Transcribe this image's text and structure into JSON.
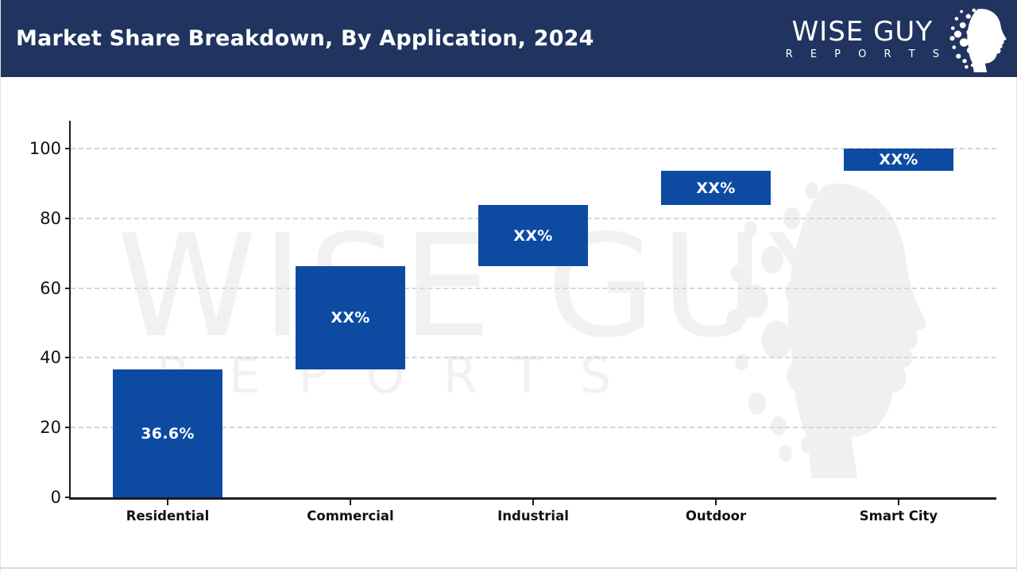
{
  "header": {
    "title": "Market Share Breakdown, By Application, 2024",
    "logo_line1": "WISE GUY",
    "logo_line2": "REPORTS"
  },
  "watermark": {
    "line1": "WISE GUY",
    "line2": "REPORTS"
  },
  "chart_data": {
    "type": "bar",
    "subtype": "waterfall",
    "title": "Market Share Breakdown, By Application, 2024",
    "categories": [
      "Residential",
      "Commercial",
      "Industrial",
      "Outdoor",
      "Smart City"
    ],
    "bars": [
      {
        "category": "Residential",
        "start": 0,
        "end": 36.6,
        "label": "36.6%"
      },
      {
        "category": "Commercial",
        "start": 36.6,
        "end": 66.2,
        "label": "XX%"
      },
      {
        "category": "Industrial",
        "start": 66.2,
        "end": 83.8,
        "label": "XX%"
      },
      {
        "category": "Outdoor",
        "start": 83.8,
        "end": 93.6,
        "label": "XX%"
      },
      {
        "category": "Smart City",
        "start": 93.6,
        "end": 100,
        "label": "XX%"
      }
    ],
    "xlabel": "",
    "ylabel": "",
    "yticks": [
      0,
      20,
      40,
      60,
      80,
      100
    ],
    "ylim": [
      0,
      108
    ],
    "grid": "horizontal-dashed",
    "legend": "none",
    "bar_color": "#0d4ba3",
    "bar_label_color": "#ffffff"
  },
  "colors": {
    "header_bg": "#213460",
    "header_text": "#ffffff",
    "axis": "#1c1c1c",
    "grid": "#d6d6d6",
    "watermark": "#f1f1f4",
    "page_border": "#d9d9d9"
  }
}
